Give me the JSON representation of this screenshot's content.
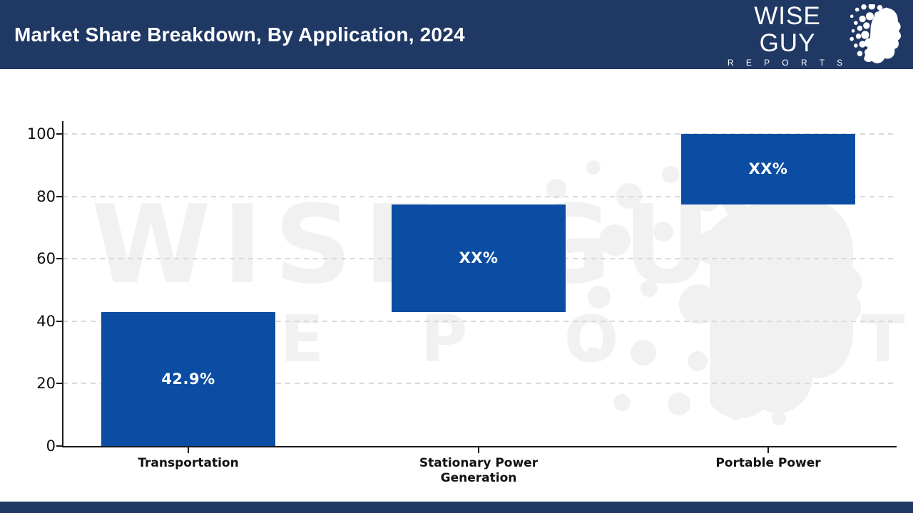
{
  "header": {
    "title": "Market Share Breakdown, By Application, 2024",
    "logo": {
      "wordmark": "WISE GUY",
      "subtext": "R E P O R T S"
    }
  },
  "watermark": {
    "line1": "WISE GUY",
    "line2": "R E P O R T S"
  },
  "chart_data": {
    "type": "bar",
    "subtype": "floating-segment-waterfall",
    "title": "Market Share Breakdown, By Application, 2024",
    "categories": [
      "Transportation",
      "Stationary Power\nGeneration",
      "Portable Power"
    ],
    "bars": [
      {
        "key": "transportation",
        "category": "Transportation",
        "start": 0,
        "end": 42.9,
        "label": "42.9%"
      },
      {
        "key": "stationary-power-generation",
        "category": "Stationary Power Generation",
        "start": 42.9,
        "end": 77.5,
        "label": "XX%"
      },
      {
        "key": "portable-power",
        "category": "Portable Power",
        "start": 77.5,
        "end": 100,
        "label": "XX%"
      }
    ],
    "xlabel": "",
    "ylabel": "",
    "yticks": [
      0,
      20,
      40,
      60,
      80,
      100
    ],
    "ylim": [
      0,
      104
    ],
    "grid": "horizontal-dashed",
    "legend": "none",
    "colors": {
      "bar": "#0b4da2",
      "header_bg": "#1f3864",
      "grid": "#d9d9d9",
      "axis": "#1a1a1a",
      "watermark": "#f1f1f2",
      "bar_label": "#ffffff"
    }
  }
}
